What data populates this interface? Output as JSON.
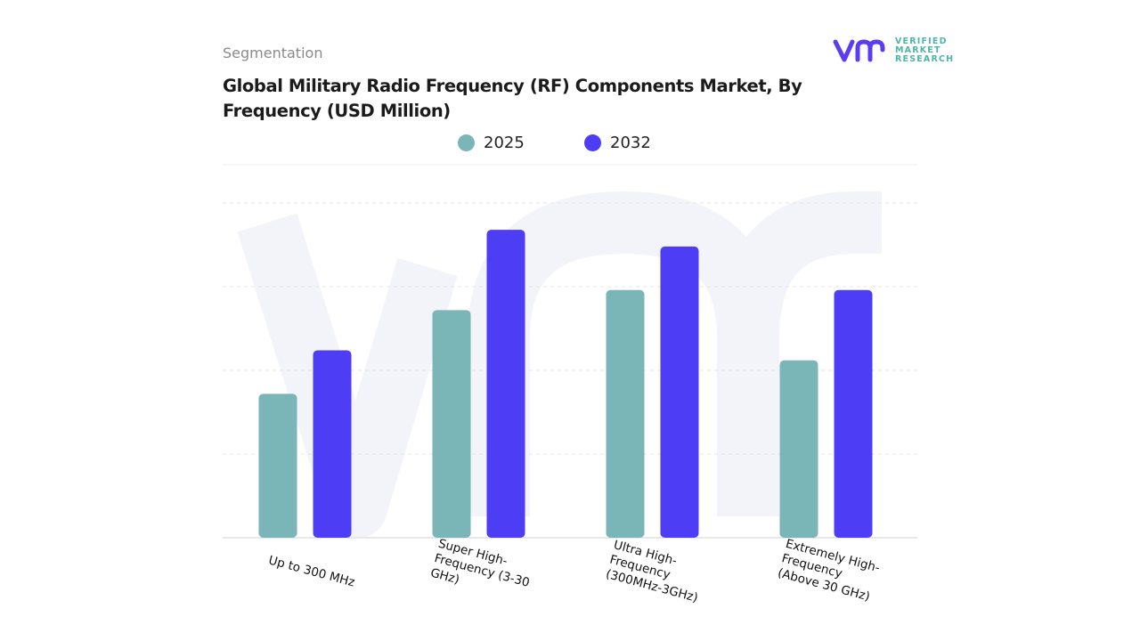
{
  "header": {
    "segment_label": "Segmentation",
    "title": "Global Military Radio Frequency (RF) Components Market, By Frequency (USD Million)"
  },
  "logo": {
    "mark": "vmr",
    "line1": "VERIFIED",
    "line2": "MARKET",
    "line3": "RESEARCH",
    "color": "#5b3cf2",
    "text_color": "#4db6ac"
  },
  "chart_data": {
    "type": "bar",
    "title": "Global Military Radio Frequency (RF) Components Market, By Frequency (USD Million)",
    "categories": [
      "Up to 300 MHz",
      "Super High-\nFrequency (3-30\nGHz)",
      "Ultra High-\nFrequency\n(300MHz-3GHz)",
      "Extremely High-\nFrequency\n(Above 30 GHz)"
    ],
    "series": [
      {
        "name": "2025",
        "color": "#7ab5b8",
        "values": [
          43,
          68,
          74,
          53
        ]
      },
      {
        "name": "2032",
        "color": "#4d3df5",
        "values": [
          56,
          92,
          87,
          74
        ]
      }
    ],
    "ylim": [
      0,
      100
    ],
    "grid": true,
    "y_tick_labels_shown": false,
    "legend_position": "top-center"
  }
}
